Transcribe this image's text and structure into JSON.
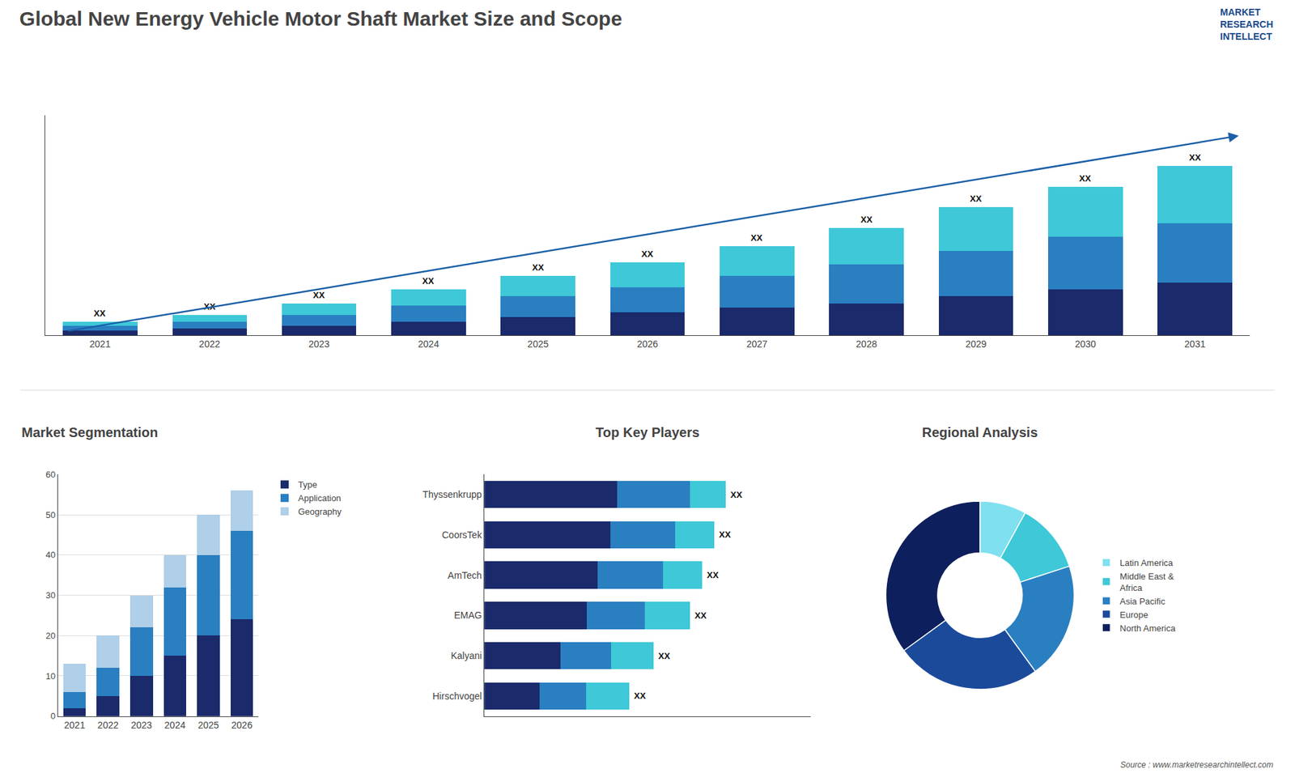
{
  "chart_data": [
    {
      "type": "bar",
      "title": "Global New Energy Vehicle Motor Shaft Market Size and Scope",
      "stacked": true,
      "categories": [
        "2021",
        "2022",
        "2023",
        "2024",
        "2025",
        "2026",
        "2027",
        "2028",
        "2029",
        "2030",
        "2031"
      ],
      "series": [
        {
          "color": "#1b2a6b",
          "values": [
            2,
            3,
            4,
            6,
            8,
            10,
            12,
            14,
            17,
            20,
            23
          ]
        },
        {
          "color": "#2a7fc1",
          "values": [
            2,
            3,
            5,
            7,
            9,
            11,
            14,
            17,
            20,
            23,
            26
          ]
        },
        {
          "color": "#3ec8d8",
          "values": [
            2,
            3,
            5,
            7,
            9,
            11,
            13,
            16,
            19,
            22,
            25
          ]
        }
      ],
      "ylim": [
        0,
        96.2
      ],
      "grid": false,
      "tick_labels": "x",
      "annotations": [
        {
          "text": "XX",
          "x": "2021"
        },
        {
          "text": "XX",
          "x": "2022"
        },
        {
          "text": "XX",
          "x": "2023"
        },
        {
          "text": "XX",
          "x": "2024"
        },
        {
          "text": "XX",
          "x": "2025"
        },
        {
          "text": "XX",
          "x": "2026"
        },
        {
          "text": "XX",
          "x": "2027"
        },
        {
          "text": "XX",
          "x": "2028"
        },
        {
          "text": "XX",
          "x": "2029"
        },
        {
          "text": "XX",
          "x": "2030"
        },
        {
          "text": "XX",
          "x": "2031"
        },
        {
          "type": "arrow",
          "color": "#1b5fa8"
        },
        {
          "text": "MARKET\nRESEARCH\nINTELLECT",
          "color": "#1b4a8b"
        },
        {
          "text": "Source : www.marketresearchintellect.com"
        }
      ]
    },
    {
      "type": "bar",
      "title": "Market Segmentation",
      "stacked": true,
      "categories": [
        "2021",
        "2022",
        "2023",
        "2024",
        "2025",
        "2026"
      ],
      "series": [
        {
          "name": "Type",
          "color": "#1b2a6b",
          "values": [
            2,
            5,
            10,
            15,
            20,
            24
          ]
        },
        {
          "name": "Application",
          "color": "#2a7fc1",
          "values": [
            4,
            7,
            12,
            17,
            20,
            22
          ]
        },
        {
          "name": "Geography",
          "color": "#b0cfe8",
          "values": [
            7,
            8,
            8,
            8,
            10,
            10
          ]
        }
      ],
      "ylim": [
        0,
        60
      ],
      "yticks": [
        0,
        10,
        20,
        30,
        40,
        50,
        60
      ],
      "grid": true,
      "legend": "upper right"
    },
    {
      "type": "bar",
      "title": "Top Key Players",
      "orientation": "horizontal",
      "stacked": true,
      "categories": [
        "Thyssenkrupp",
        "CoorsTek",
        "AmTech",
        "EMAG",
        "Kalyani",
        "Hirschvogel"
      ],
      "series": [
        {
          "color": "#1b2a6b",
          "values": [
            5.5,
            5.225,
            4.68,
            4.25,
            3.15,
            2.28
          ]
        },
        {
          "color": "#2a7fc1",
          "values": [
            3.0,
            2.66,
            2.7,
            2.38,
            2.1,
            1.92
          ]
        },
        {
          "color": "#3ec8d8",
          "values": [
            1.5,
            1.615,
            1.62,
            1.87,
            1.75,
            1.8
          ]
        }
      ],
      "xlim": [
        0,
        13.5
      ],
      "grid": false,
      "tick_labels": "y",
      "annotations": [
        {
          "text": "XX",
          "y": "Thyssenkrupp"
        },
        {
          "text": "XX",
          "y": "CoorsTek"
        },
        {
          "text": "XX",
          "y": "AmTech"
        },
        {
          "text": "XX",
          "y": "EMAG"
        },
        {
          "text": "XX",
          "y": "Kalyani"
        },
        {
          "text": "XX",
          "y": "Hirschvogel"
        }
      ]
    },
    {
      "type": "pie",
      "title": "Regional Analysis",
      "categories": [
        "Latin America",
        "Middle East &\nAfrica",
        "Asia Pacific",
        "Europe",
        "North America"
      ],
      "values": [
        8,
        12,
        20,
        25,
        35
      ],
      "colors": [
        "#7fe0f0",
        "#3ec8d8",
        "#2a7fc1",
        "#1b4a9b",
        "#0d1f5c"
      ],
      "legend": "right"
    }
  ]
}
